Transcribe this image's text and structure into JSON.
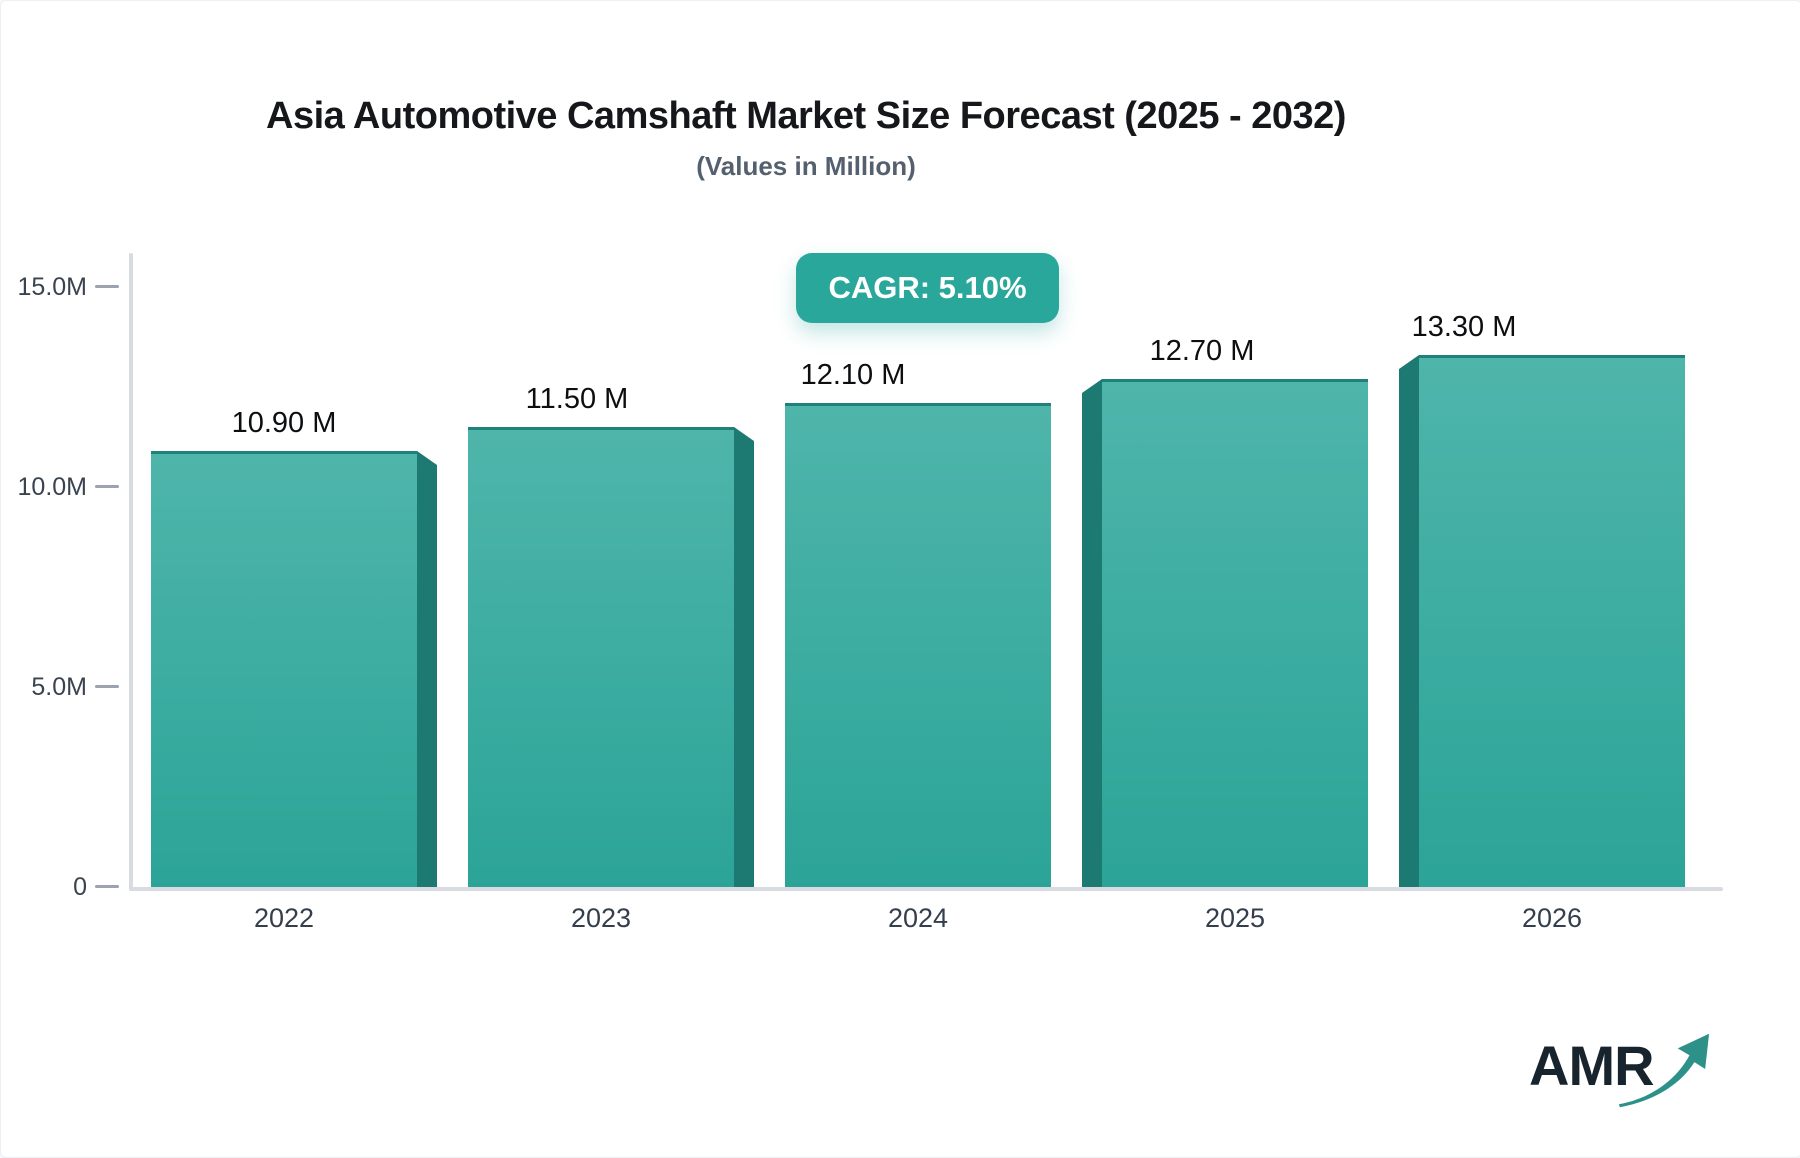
{
  "page": {
    "title": "Asia Automotive Camshaft Market Size Forecast (2025 - 2032)",
    "subtitle": "(Values in Million)",
    "cagr_badge": "CAGR: 5.10%",
    "logo_text": "AMR"
  },
  "chart_data": {
    "type": "bar",
    "title": "Asia Automotive Camshaft Market Size Forecast (2025 - 2032)",
    "subtitle": "(Values in Million)",
    "cagr": "CAGR: 5.10%",
    "unit": "Million",
    "categories": [
      "2022",
      "2023",
      "2024",
      "2025",
      "2026"
    ],
    "values": [
      10.9,
      11.5,
      12.1,
      12.7,
      13.3
    ],
    "value_labels": [
      "10.90 M",
      "11.50 M",
      "12.10 M",
      "12.70 M",
      "13.30 M"
    ],
    "ylim": [
      0,
      15
    ],
    "yticks": [
      {
        "label": "15.0M",
        "value": 15
      },
      {
        "label": "10.0M",
        "value": 10
      },
      {
        "label": "5.0M",
        "value": 5
      },
      {
        "label": "0",
        "value": 0
      }
    ],
    "grid": false,
    "legend": "none",
    "bar_style": {
      "face_top_color": "#4fb5ab",
      "face_bottom_color": "#2ba497",
      "edge_color": "#1f8279",
      "side_color": "#1d7a72",
      "extrude_sides": [
        "right",
        "right",
        "none",
        "left",
        "left"
      ]
    }
  },
  "colors": {
    "badge_bg": "#2aa79b",
    "badge_text": "#ffffff",
    "title": "#15171a",
    "subtitle": "#55606e",
    "axis_line": "#d8dbe1",
    "tick": "#9aa3af",
    "tick_label": "#3a4450",
    "category_label": "#343e4d",
    "value_label": "#0c0e10",
    "logo_text": "#17242e",
    "logo_arrow": "#2d9189"
  }
}
